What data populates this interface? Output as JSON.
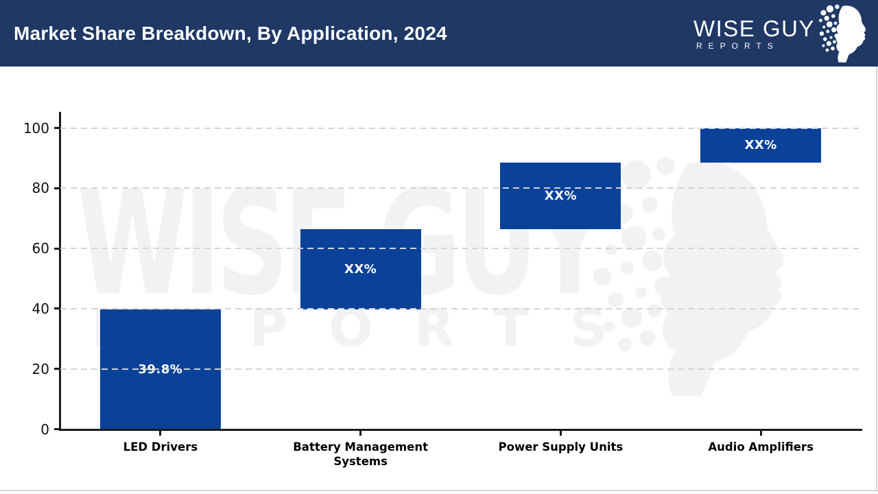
{
  "header": {
    "title": "Market Share Breakdown, By Application, 2024",
    "logo": {
      "name_line": "WISE GUY",
      "sub_line": "REPORTS"
    }
  },
  "watermark": {
    "name_line": "WISE GUY",
    "sub_line": "REPORTS"
  },
  "chart_data": {
    "type": "bar",
    "subtype": "waterfall",
    "title": "Market Share Breakdown, By Application, 2024",
    "categories": [
      "LED Drivers",
      "Battery Management Systems",
      "Power Supply Units",
      "Audio Amplifiers"
    ],
    "segments": [
      {
        "category": "LED Drivers",
        "start": 0,
        "end": 39.8,
        "value": 39.8,
        "label": "39.8%"
      },
      {
        "category": "Battery Management Systems",
        "start": 39.8,
        "end": 66.4,
        "value": 26.6,
        "label": "XX%"
      },
      {
        "category": "Power Supply Units",
        "start": 66.4,
        "end": 88.5,
        "value": 22.1,
        "label": "XX%"
      },
      {
        "category": "Audio Amplifiers",
        "start": 88.5,
        "end": 100,
        "value": 11.5,
        "label": "XX%"
      }
    ],
    "ylim": [
      0,
      100
    ],
    "yticks": [
      0,
      20,
      40,
      60,
      80,
      100
    ],
    "xlabel": "",
    "ylabel": "",
    "grid": "horizontal-dashed",
    "legend": "none",
    "bar_color": "#0a4299",
    "bar_label_color": "#ffffff",
    "axis_color": "#1a1a1a",
    "grid_color": "#d4d4d4",
    "header_color": "#1f3864"
  }
}
